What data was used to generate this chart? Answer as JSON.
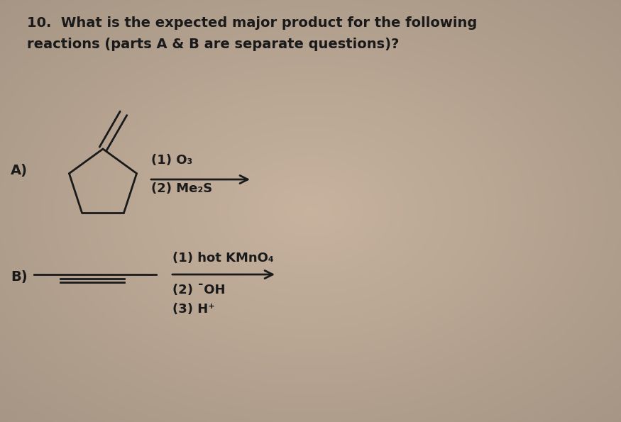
{
  "bg_color": "#a09080",
  "paper_color": "#d8cfc4",
  "text_color": "#1a1a1a",
  "title_line1": "10.  What is the expected major product for the following",
  "title_line2": "reactions (parts A & B are separate questions)?",
  "label_A": "A)",
  "label_B": "B)",
  "reaction_A_line1": "(1) O₃",
  "reaction_A_line2": "(2) Me₂S",
  "reaction_B_line1": "(1) hot KMnO₄",
  "reaction_B_line2": "(2) ¯OH",
  "reaction_B_line3": "(3) H⁺",
  "title_fontsize": 14,
  "label_fontsize": 14,
  "reaction_fontsize": 13,
  "mol_lw": 2.0,
  "arrow_lw": 2.0
}
